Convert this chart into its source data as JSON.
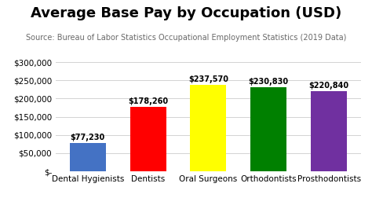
{
  "title": "Average Base Pay by Occupation (USD)",
  "subtitle": "Source: Bureau of Labor Statistics Occupational Employment Statistics (2019 Data)",
  "categories": [
    "Dental Hygienists",
    "Dentists",
    "Oral Surgeons",
    "Orthodontists",
    "Prosthodontists"
  ],
  "values": [
    77230,
    178260,
    237570,
    230830,
    220840
  ],
  "bar_colors": [
    "#4472C4",
    "#FF0000",
    "#FFFF00",
    "#008000",
    "#7030A0"
  ],
  "labels": [
    "$77,230",
    "$178,260",
    "$237,570",
    "$230,830",
    "$220,840"
  ],
  "ylim": [
    0,
    310000
  ],
  "yticks": [
    0,
    50000,
    100000,
    150000,
    200000,
    250000,
    300000
  ],
  "ytick_labels": [
    "$-",
    "$50,000",
    "$100,000",
    "$150,000",
    "$200,000",
    "$250,000",
    "$300,000"
  ],
  "background_color": "#FFFFFF",
  "title_fontsize": 13,
  "subtitle_fontsize": 7,
  "label_fontsize": 7,
  "tick_fontsize": 7.5,
  "bar_width": 0.6
}
